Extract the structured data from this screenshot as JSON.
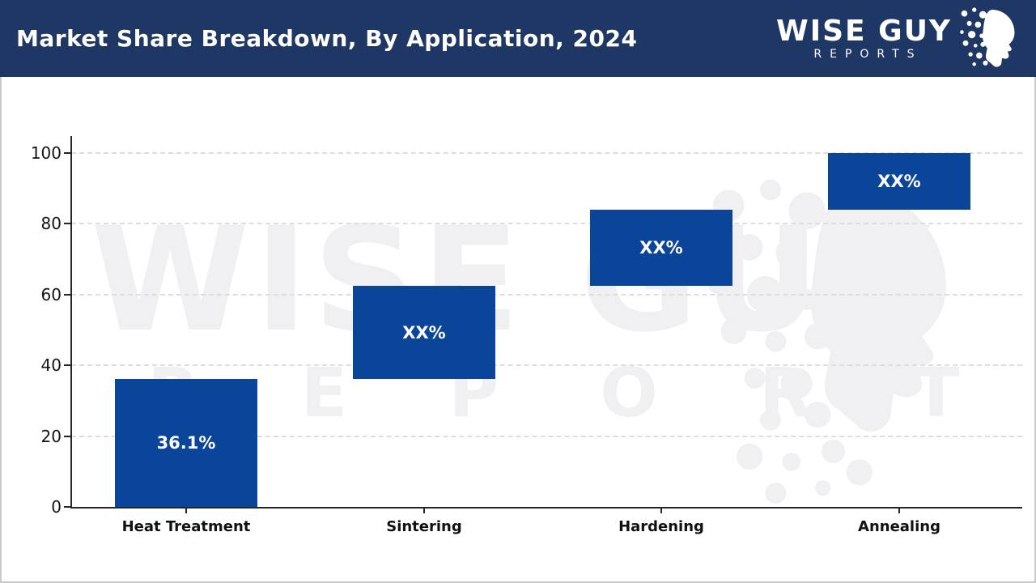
{
  "header": {
    "title": "Market Share Breakdown, By Application, 2024",
    "logo_line1": "WISE GUY",
    "logo_line2": "REPORTS"
  },
  "watermark": {
    "line1": "WISE GUY",
    "line2": "R E P O R T S"
  },
  "colors": {
    "header_bg": "#1f3765",
    "bar_fill": "#0b4599",
    "bar_label": "#ffffff",
    "gridline": "#dedede",
    "axis": "#262626",
    "watermark": "#f0f0f2",
    "frame_border": "#c9c9c9"
  },
  "chart_data": {
    "type": "bar",
    "subtype": "waterfall",
    "title": "Market Share Breakdown, By Application, 2024",
    "xlabel": "",
    "ylabel": "",
    "ylim": [
      0,
      104
    ],
    "y_ticks": [
      0,
      20,
      40,
      60,
      80,
      100
    ],
    "grid": "horizontal-dashed",
    "legend": "none",
    "categories": [
      "Heat Treatment",
      "Sintering",
      "Hardening",
      "Annealing"
    ],
    "bars": [
      {
        "category": "Heat Treatment",
        "start": 0,
        "end": 36.1,
        "label": "36.1%"
      },
      {
        "category": "Sintering",
        "start": 36.1,
        "end": 62.3,
        "label": "XX%"
      },
      {
        "category": "Hardening",
        "start": 62.3,
        "end": 83.8,
        "label": "XX%"
      },
      {
        "category": "Annealing",
        "start": 83.8,
        "end": 100,
        "label": "XX%"
      }
    ]
  }
}
